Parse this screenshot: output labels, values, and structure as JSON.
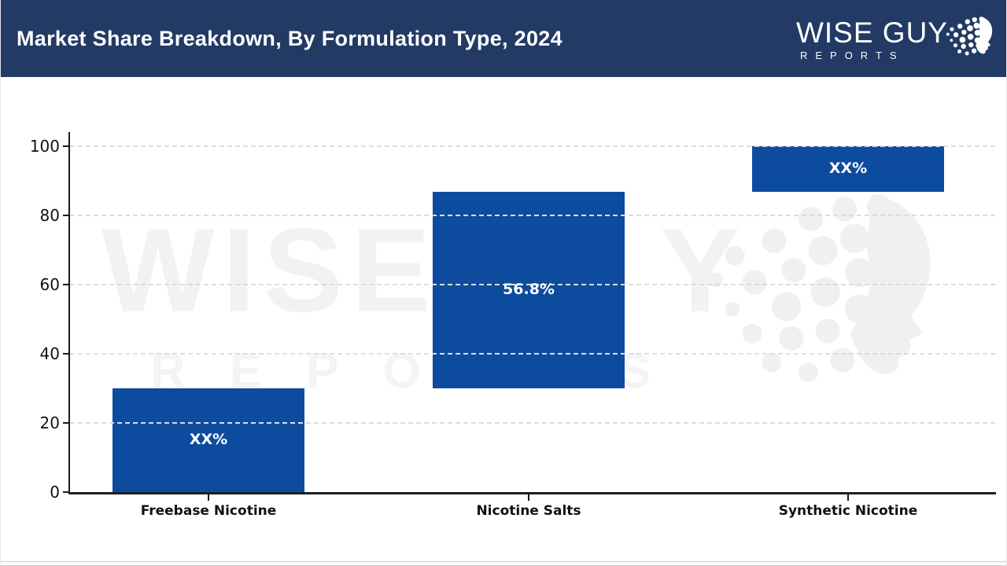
{
  "header": {
    "title": "Market Share Breakdown, By Formulation Type, 2024",
    "background": "#223a64",
    "logo": {
      "line1": "WISE GUY",
      "line2": "REPORTS"
    }
  },
  "watermark": {
    "line1": "WISE G",
    "line1b": "Y",
    "line2": "REPORTS"
  },
  "chart_data": {
    "type": "bar",
    "variant": "floating stacked segments (waterfall-style market share)",
    "title": "Market Share Breakdown, By Formulation Type, 2024",
    "categories": [
      "Freebase Nicotine",
      "Nicotine Salts",
      "Synthetic Nicotine"
    ],
    "ranges": [
      [
        0,
        30
      ],
      [
        30,
        86.8
      ],
      [
        86.8,
        100
      ]
    ],
    "segment_values": [
      30,
      56.8,
      13.2
    ],
    "bar_labels": [
      "XX%",
      "56.8%",
      "XX%"
    ],
    "yticks": [
      0,
      20,
      40,
      60,
      80,
      100
    ],
    "ylim": [
      0,
      105
    ],
    "xlabel": "",
    "ylabel": "",
    "grid": true,
    "legend": false,
    "gridlines_over_bars": true,
    "bar_color": "#0d4b9e",
    "gridline_color": "#dcdcdc",
    "bar_label_color": "#ffffff",
    "axis_color": "#1a1a1a"
  }
}
